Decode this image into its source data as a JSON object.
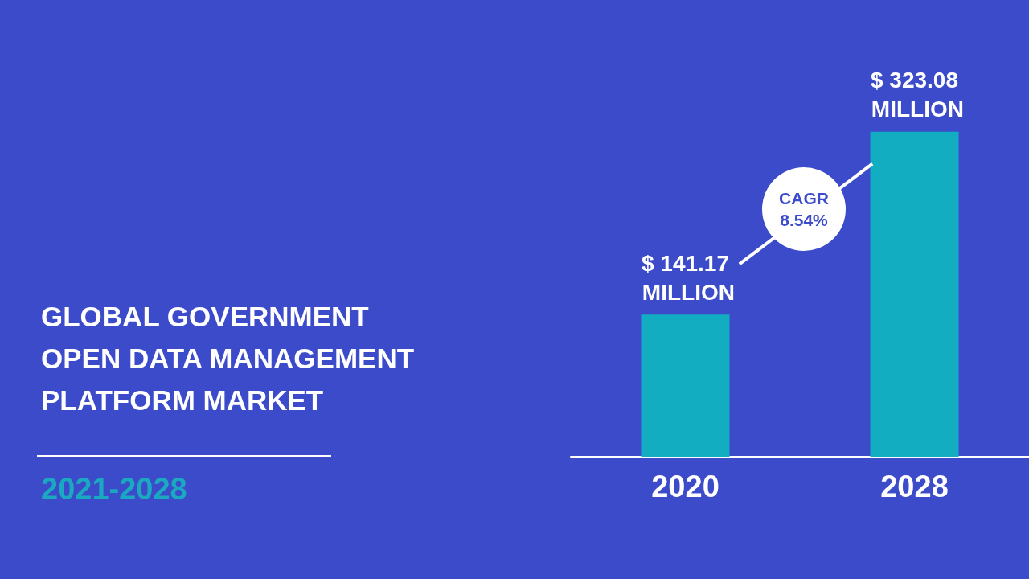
{
  "chart_data": {
    "type": "bar",
    "title": "GLOBAL GOVERNMENT OPEN DATA MANAGEMENT PLATFORM MARKET",
    "subtitle": "2021-2028",
    "categories": [
      "2020",
      "2028"
    ],
    "values": [
      141.17,
      323.08
    ],
    "value_labels": [
      "$ 141.17 MILLION",
      "$ 323.08 MILLION"
    ],
    "color": "#12adc1",
    "annotations": [
      "CAGR 8.54%"
    ],
    "grid": false
  }
}
